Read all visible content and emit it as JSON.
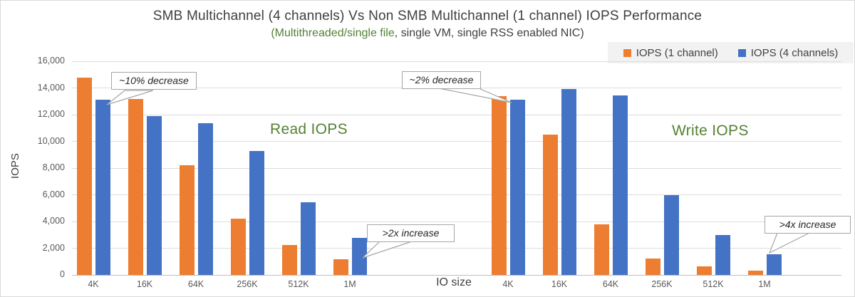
{
  "header": {
    "title": "SMB Multichannel (4 channels) Vs Non SMB Multichannel (1 channel) IOPS Performance",
    "subtitle_highlight": "(Multithreaded/single file",
    "subtitle_rest": ", single VM, single RSS enabled NIC)",
    "subtitle_highlight_color": "#538135",
    "title_color": "#3f3f3f"
  },
  "legend": {
    "background": "#f2f2f2",
    "items": [
      {
        "label": "IOPS (1 channel)",
        "color": "#ED7D31"
      },
      {
        "label": "IOPS (4 channels)",
        "color": "#4472C4"
      }
    ]
  },
  "chart_data": {
    "type": "bar",
    "title": "SMB Multichannel (4 channels) Vs Non SMB Multichannel (1 channel) IOPS Performance",
    "subtitle": "(Multithreaded/single file, single VM, single RSS enabled NIC)",
    "ylabel": "IOPS",
    "xlabel": "IO size",
    "ylim": [
      0,
      16000
    ],
    "ytick_step": 2000,
    "grid": true,
    "legend_position": "top-right",
    "categories": [
      "4K",
      "16K",
      "64K",
      "256K",
      "512K",
      "1M"
    ],
    "groups": [
      {
        "label": "Read IOPS",
        "series": [
          {
            "name": "IOPS (1 channel)",
            "color": "#ED7D31",
            "values": [
              14800,
              13200,
              8200,
              4200,
              2250,
              1150
            ]
          },
          {
            "name": "IOPS (4 channels)",
            "color": "#4472C4",
            "values": [
              13100,
              11900,
              11350,
              9300,
              5450,
              2800
            ]
          }
        ]
      },
      {
        "label": "Write IOPS",
        "series": [
          {
            "name": "IOPS (1 channel)",
            "color": "#ED7D31",
            "values": [
              13400,
              10500,
              3800,
              1250,
              650,
              300
            ]
          },
          {
            "name": "IOPS (4 channels)",
            "color": "#4472C4",
            "values": [
              13100,
              13900,
              13450,
              6000,
              3000,
              1550
            ]
          }
        ]
      }
    ],
    "annotations": [
      {
        "text": "~10% decrease",
        "target": "Read 4K IOPS (4 channels) bar"
      },
      {
        "text": "~2% decrease",
        "target": "Write 4K IOPS (4 channels) bar"
      },
      {
        "text": ">2x increase",
        "target": "Read 1M IOPS (4 channels) bar"
      },
      {
        "text": ">4x increase",
        "target": "Write 1M IOPS (4 channels) bar"
      }
    ],
    "section_label_color": "#538135"
  }
}
